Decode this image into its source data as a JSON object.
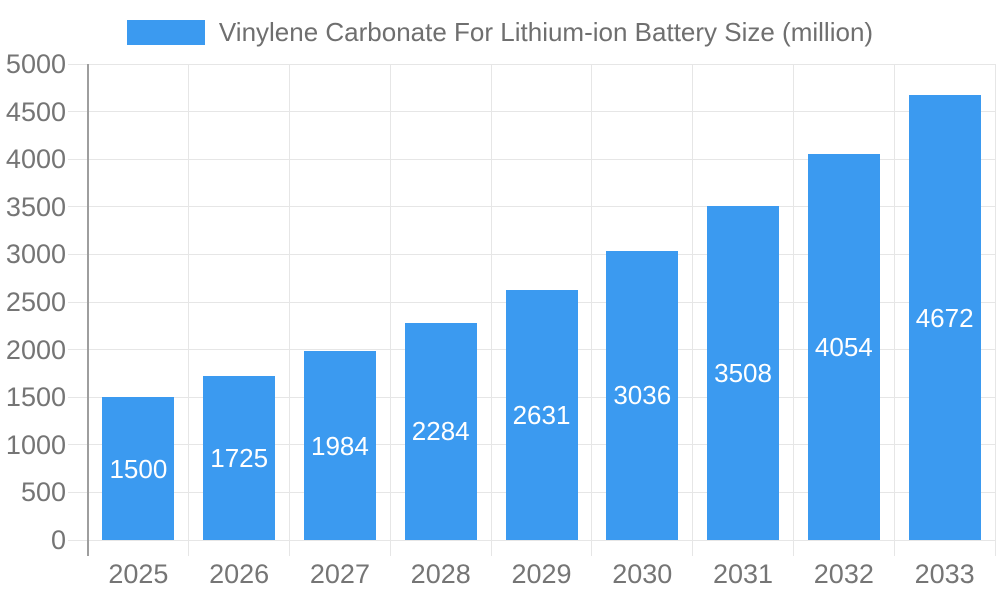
{
  "chart_data": {
    "type": "bar",
    "title": "Vinylene Carbonate For Lithium-ion Battery Size (million)",
    "series_name": "Vinylene Carbonate For Lithium-ion Battery Size (million)",
    "categories": [
      "2025",
      "2026",
      "2027",
      "2028",
      "2029",
      "2030",
      "2031",
      "2032",
      "2033"
    ],
    "values": [
      1500,
      1725,
      1984,
      2284,
      2631,
      3036,
      3508,
      4054,
      4672
    ],
    "xlabel": "",
    "ylabel": "",
    "ylim": [
      0,
      5000
    ],
    "ytick_step": 500,
    "ytick_labels": [
      "0",
      "500",
      "1000",
      "1500",
      "2000",
      "2500",
      "3000",
      "3500",
      "4000",
      "4500",
      "5000"
    ],
    "grid": true,
    "legend_position": "top",
    "value_labels": "inside-center",
    "colors": {
      "bar": "#3b9af0",
      "value_label": "#ffffff",
      "axis_label": "#757575",
      "title": "#6f6f6f",
      "gridline": "#e6e6e6",
      "axis_line": "#9e9e9e",
      "background": "#ffffff"
    }
  }
}
